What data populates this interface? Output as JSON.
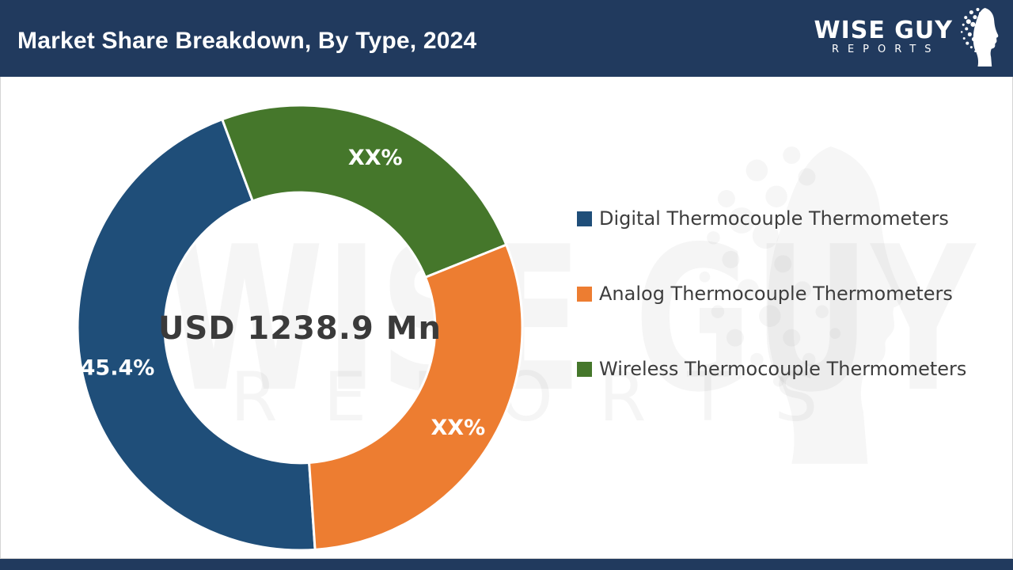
{
  "header": {
    "title": "Market Share Breakdown, By Type, 2024",
    "bg_color": "#213a5e"
  },
  "brand": {
    "name": "WISE GUY",
    "subname": "REPORTS"
  },
  "chart_data": {
    "type": "pie",
    "subtype": "donut",
    "title": "Market Share Breakdown, By Type, 2024",
    "center_label": "USD 1238.9 Mn",
    "donut_hole_ratio": 0.608,
    "rotation_deg": 86.1,
    "direction": "clockwise",
    "slice_border_color": "#ffffff",
    "label_color": "#ffffff",
    "segments": [
      {
        "name": "Digital Thermocouple Thermometers",
        "value_pct": 45.4,
        "label": "45.4%",
        "color": "#1f4e79"
      },
      {
        "name": "Wireless Thermocouple Thermometers",
        "value_pct": 24.6,
        "label": "XX%",
        "color": "#45772b"
      },
      {
        "name": "Analog Thermocouple Thermometers",
        "value_pct": 30.0,
        "label": "XX%",
        "color": "#ed7d31"
      }
    ],
    "legend_position": "right"
  },
  "legend": {
    "items": [
      {
        "label": "Digital Thermocouple Thermometers",
        "color": "#1f4e79"
      },
      {
        "label": "Analog Thermocouple Thermometers",
        "color": "#ed7d31"
      },
      {
        "label": "Wireless Thermocouple Thermometers",
        "color": "#45772b"
      }
    ]
  }
}
